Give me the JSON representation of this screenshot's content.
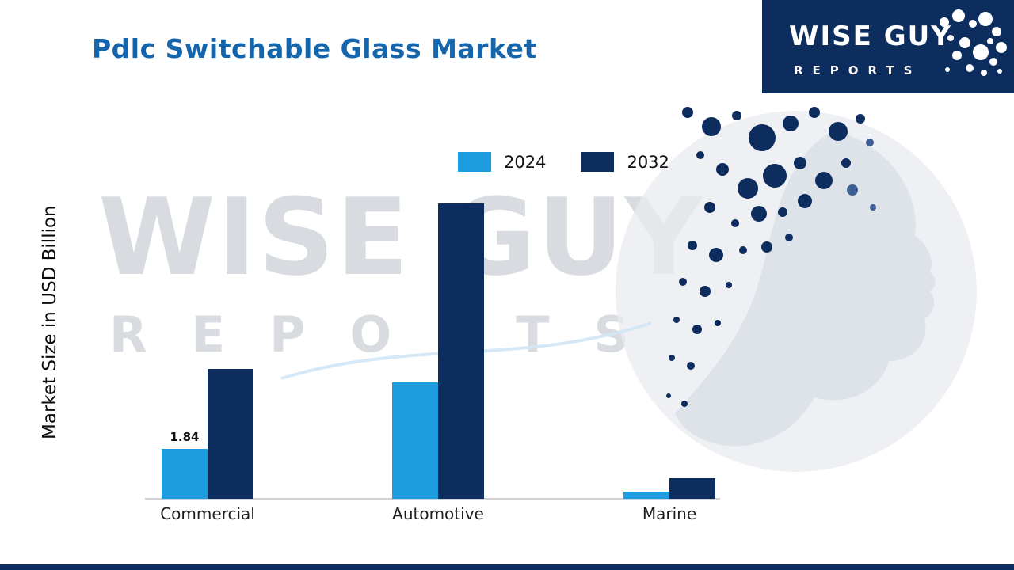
{
  "page": {
    "title": "Pdlc Switchable Glass Market"
  },
  "logo": {
    "line1": "WISE GUY",
    "line2": "REPORTS"
  },
  "watermark": {
    "line1": "WISE GUY",
    "line2": "REPORTS"
  },
  "chart_data": {
    "type": "bar",
    "title": "Pdlc Switchable Glass Market",
    "xlabel": "",
    "ylabel": "Market Size in USD Billion",
    "categories": [
      "Commercial",
      "Automotive",
      "Marine"
    ],
    "series": [
      {
        "name": "2024",
        "color": "#1b9de0",
        "values": [
          1.84,
          4.3,
          0.25
        ],
        "labels": [
          "1.84",
          "",
          ""
        ]
      },
      {
        "name": "2032",
        "color": "#0d2d5e",
        "values": [
          4.8,
          10.9,
          0.75
        ],
        "labels": [
          "",
          "",
          ""
        ]
      }
    ],
    "ylim": [
      0,
      12
    ],
    "grid": false,
    "legend_position": "top-center"
  },
  "colors": {
    "title_blue": "#1565ad",
    "series_2024": "#1b9de0",
    "series_2032": "#0d2d5e",
    "navy_block": "#0d2d5e",
    "watermark_gray": "#d8dbe0"
  }
}
